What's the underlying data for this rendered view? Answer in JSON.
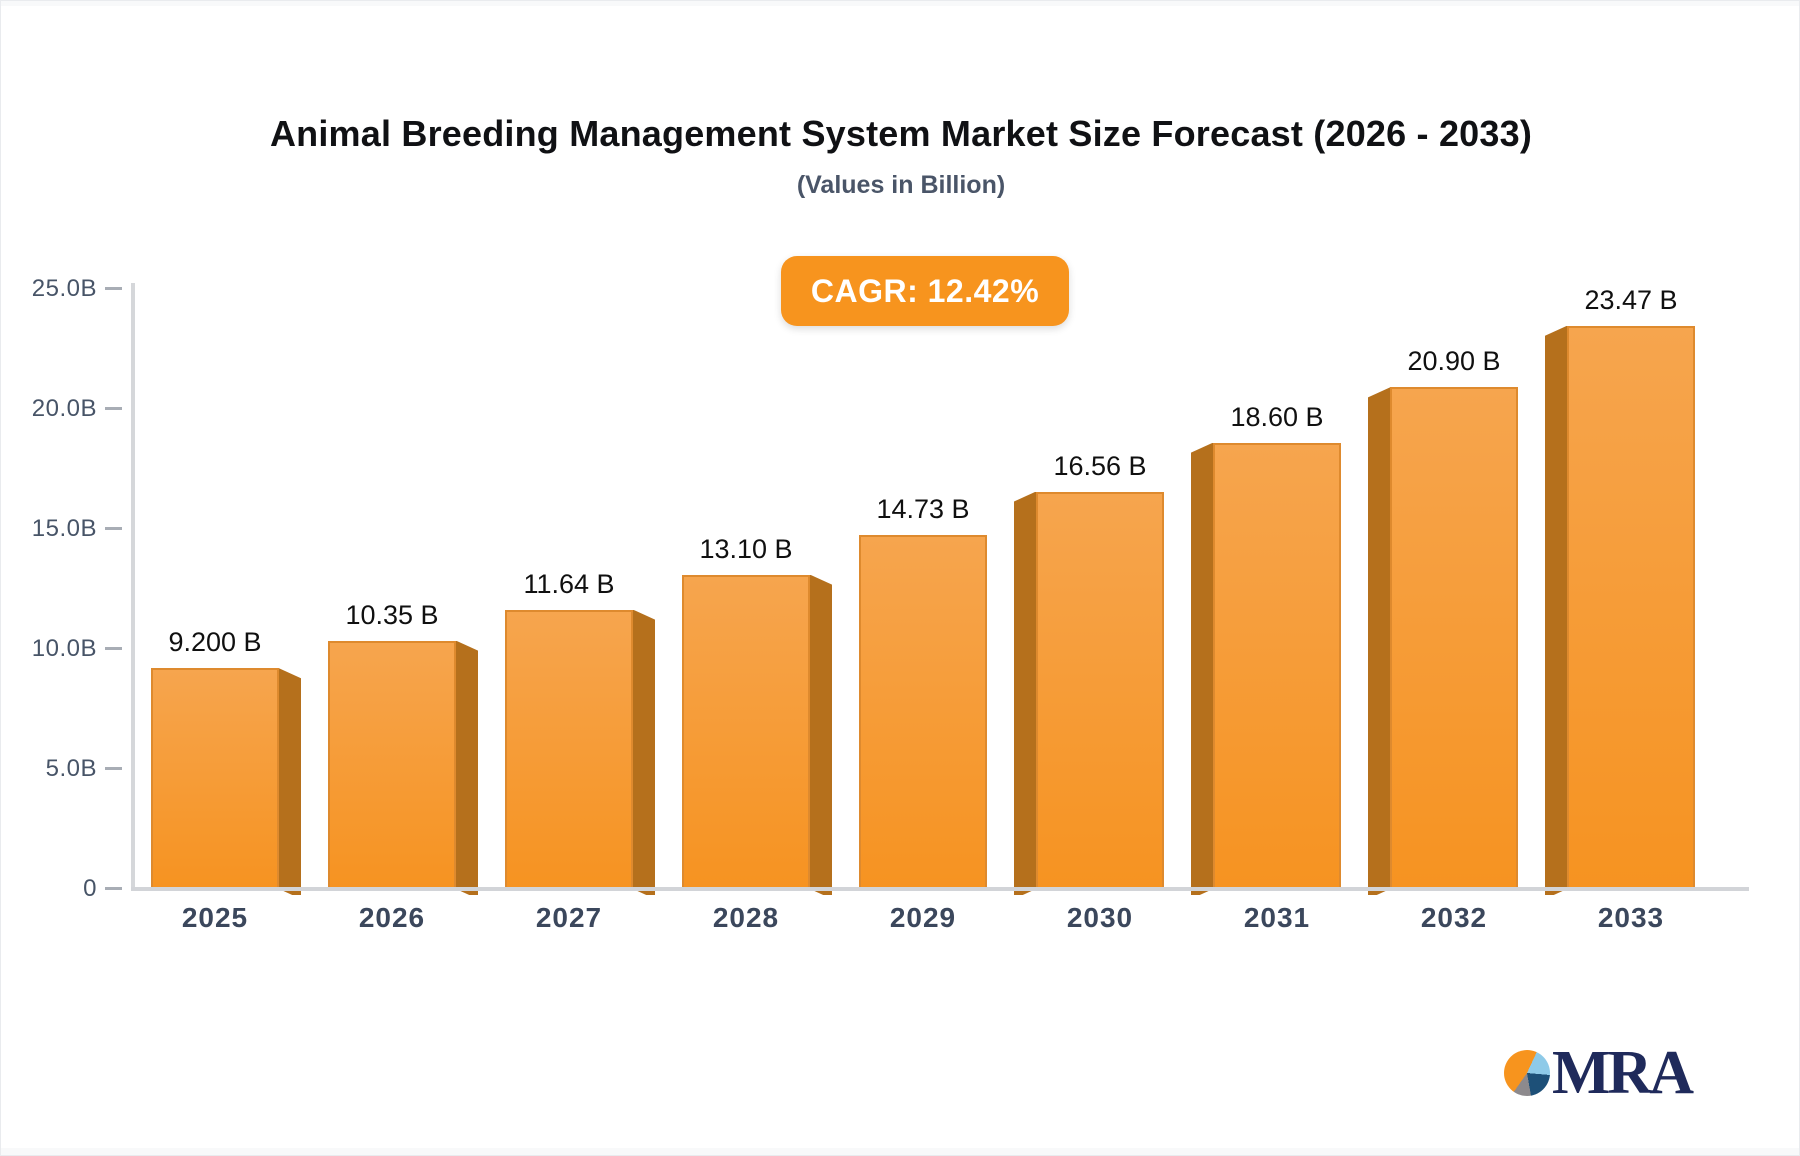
{
  "page": {
    "title": "Animal Breeding Management System Market Size Forecast (2026 - 2033)",
    "subtitle": "(Values in Billion)",
    "cagr_label": "CAGR: 12.42%",
    "logo_text": "MRA"
  },
  "colors": {
    "bar_face_top": "#f6a54e",
    "bar_face_bottom": "#f69321",
    "bar_side": "#b5701c",
    "bar_border": "#de8a2e",
    "badge": "#f7941e",
    "axis_line": "#d5d7da",
    "tick_label": "#475467",
    "year_label": "#3b475c",
    "value_label": "#101010",
    "logo_navy": "#1f2a5b",
    "logo_orange": "#f7941e",
    "logo_lightblue": "#8ecae8",
    "logo_blue": "#1d5078",
    "logo_gray": "#8d8a8d"
  },
  "chart_data": {
    "type": "bar",
    "title": "Animal Breeding Management System Market Size Forecast (2026 - 2033)",
    "subtitle": "(Values in Billion)",
    "annotation": "CAGR: 12.42%",
    "categories": [
      "2025",
      "2026",
      "2027",
      "2028",
      "2029",
      "2030",
      "2031",
      "2032",
      "2033"
    ],
    "values": [
      9.2,
      10.35,
      11.64,
      13.1,
      14.73,
      16.56,
      18.6,
      20.9,
      23.47
    ],
    "bar_labels": [
      "9.200 B",
      "10.35 B",
      "11.64 B",
      "13.10 B",
      "14.73 B",
      "16.56 B",
      "18.60 B",
      "20.90 B",
      "23.47 B"
    ],
    "xlabel": "",
    "ylabel": "",
    "ylim": [
      0,
      25
    ],
    "y_ticks": [
      {
        "label": "25.0B",
        "value": 25
      },
      {
        "label": "20.0B",
        "value": 20
      },
      {
        "label": "15.0B",
        "value": 15
      },
      {
        "label": "10.0B",
        "value": 10
      },
      {
        "label": "5.0B",
        "value": 5
      },
      {
        "label": "0",
        "value": 0
      }
    ],
    "grid": false,
    "legend": false,
    "bar_style": "3d-perspective-center-vanishing"
  }
}
